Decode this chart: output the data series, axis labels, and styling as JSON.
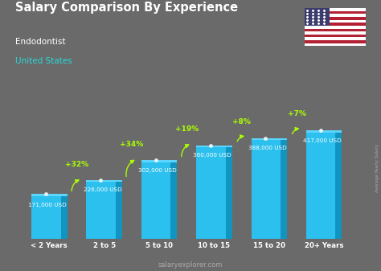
{
  "title": "Salary Comparison By Experience",
  "subtitle1": "Endodontist",
  "subtitle2": "United States",
  "categories": [
    "< 2 Years",
    "2 to 5",
    "5 to 10",
    "10 to 15",
    "15 to 20",
    "20+ Years"
  ],
  "values": [
    171000,
    226000,
    302000,
    360000,
    388000,
    417000
  ],
  "labels": [
    "171,000 USD",
    "226,000 USD",
    "302,000 USD",
    "360,000 USD",
    "388,000 USD",
    "417,000 USD"
  ],
  "pct_changes": [
    "+32%",
    "+34%",
    "+19%",
    "+8%",
    "+7%"
  ],
  "bar_color": "#29c5f6",
  "bar_color_dark": "#1090bb",
  "bar_color_top": "#60d8ff",
  "bg_color": "#6a6a6a",
  "title_color": "#ffffff",
  "subtitle1_color": "#ffffff",
  "subtitle2_color": "#29d8d8",
  "pct_color": "#aaff00",
  "cat_color": "#ffffff",
  "footer": "salaryexplorer.com",
  "footer_color": "#aaaaaa",
  "ylabel": "Average Yearly Salary",
  "ylabel_color": "#aaaaaa"
}
